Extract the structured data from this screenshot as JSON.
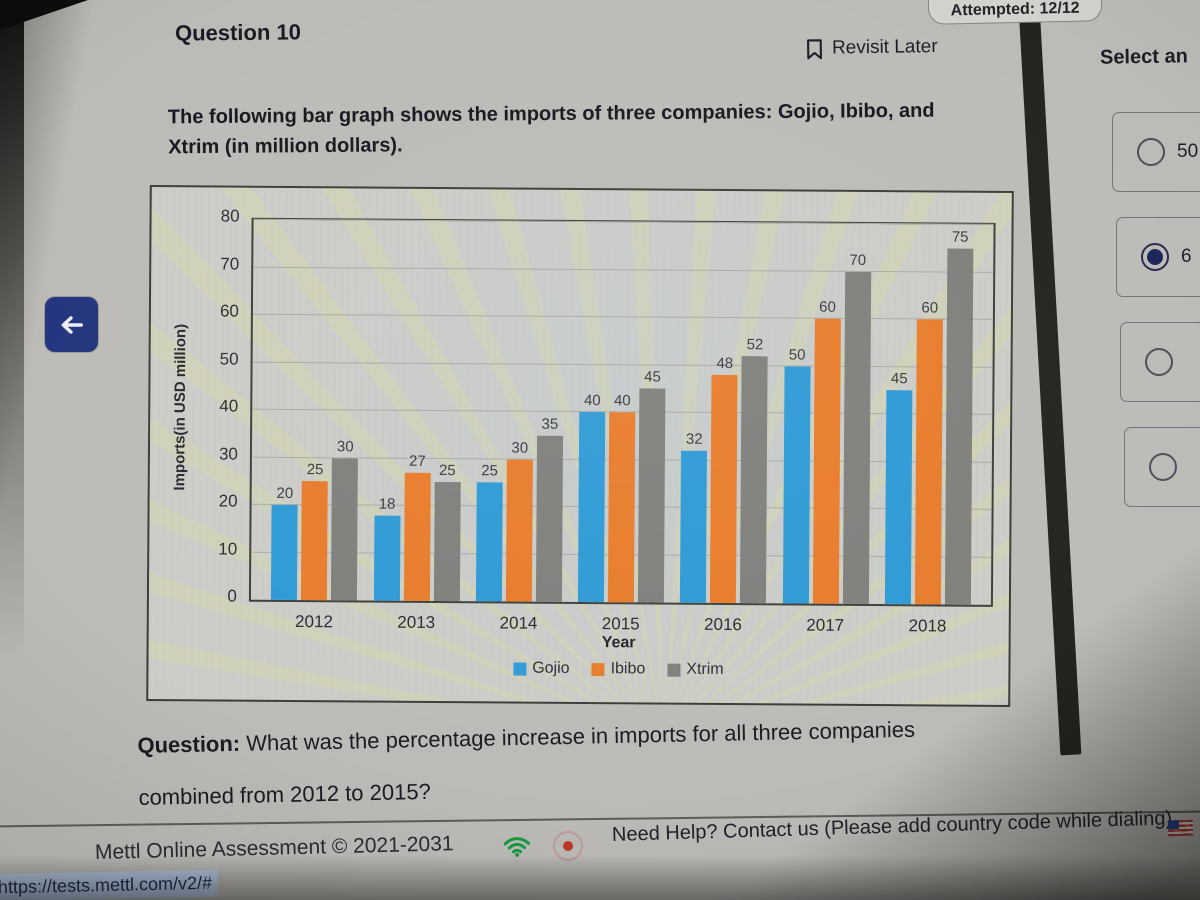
{
  "header": {
    "question_number": "Question 10",
    "attempted_badge": "Attempted: 12/12",
    "revisit_later_label": "Revisit Later",
    "select_answer_label": "Select an"
  },
  "problem": {
    "statement_line1": "The following bar graph shows the imports of three companies: Gojio, Ibibo, and",
    "statement_line2": "Xtrim (in million dollars).",
    "question_prefix": "Question:",
    "question_line1": "What was the percentage increase in imports for all three companies",
    "question_line2": "combined from 2012 to 2015?"
  },
  "chart_data": {
    "type": "bar",
    "title": "",
    "xlabel": "Year",
    "ylabel": "Imports(in USD million)",
    "ylim": [
      0,
      80
    ],
    "ytick_step": 10,
    "grid": true,
    "legend_position": "bottom",
    "categories": [
      "2012",
      "2013",
      "2014",
      "2015",
      "2016",
      "2017",
      "2018"
    ],
    "series": [
      {
        "name": "Gojio",
        "color": "#2e9ad5",
        "values": [
          20,
          18,
          25,
          40,
          32,
          50,
          45
        ]
      },
      {
        "name": "Ibibo",
        "color": "#e87c2b",
        "values": [
          25,
          27,
          30,
          40,
          48,
          60,
          60
        ]
      },
      {
        "name": "Xtrim",
        "color": "#7f7f7c",
        "values": [
          30,
          25,
          35,
          45,
          52,
          70,
          75
        ]
      }
    ]
  },
  "options": [
    {
      "label": "50",
      "selected": false
    },
    {
      "label": "6",
      "selected": true
    },
    {
      "label": "",
      "selected": false
    },
    {
      "label": "",
      "selected": false
    }
  ],
  "footer": {
    "copyright": "Mettl Online Assessment © 2021-2031",
    "help_text": "Need Help? Contact us (Please add country code while dialing)",
    "url_tooltip": "https://tests.mettl.com/v2/#"
  },
  "colors": {
    "accent_navy": "#22357e",
    "selected_radio": "#1a2458",
    "bar_blue": "#2e9ad5",
    "bar_orange": "#e87c2b",
    "bar_gray": "#7f7f7c",
    "wifi_green": "#169a43",
    "record_red": "#c0392b",
    "scrollbar_dark": "#24241f"
  }
}
